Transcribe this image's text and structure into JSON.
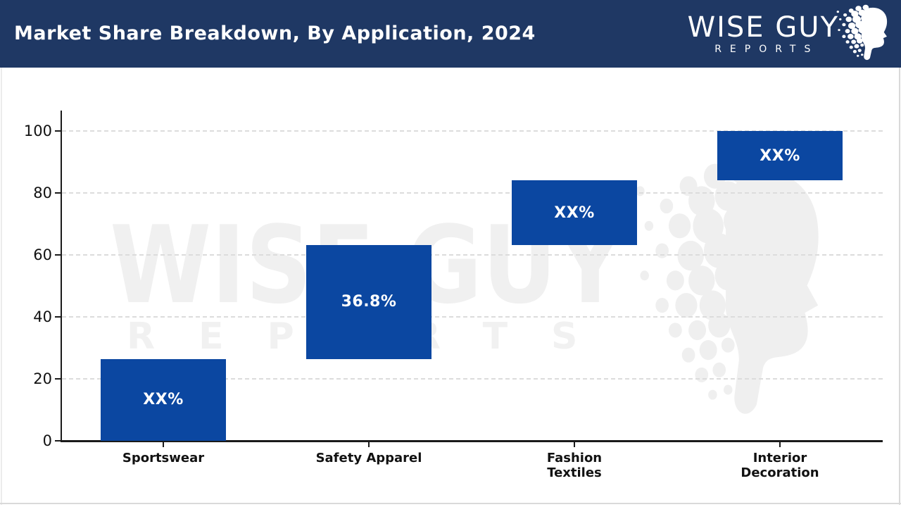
{
  "header": {
    "title": "Market Share Breakdown, By Application, 2024",
    "logo": {
      "line1": "WISE GUY",
      "line2": "REPORTS"
    }
  },
  "watermark": {
    "line1": "WISE GUY",
    "line2": "REPORTS"
  },
  "colors": {
    "header_bg": "#1f3864",
    "bar": "#0b47a1",
    "grid": "#dcdcdc",
    "axis": "#1a1a1a",
    "bar_label": "#ffffff"
  },
  "chart_data": {
    "type": "bar",
    "variant": "floating-waterfall-segments",
    "title": "Market Share Breakdown, By Application, 2024",
    "categories": [
      "Sportswear",
      "Safety Apparel",
      "Fashion Textiles",
      "Interior Decoration"
    ],
    "bars": [
      {
        "category": "Sportswear",
        "label": "XX%",
        "start": 0,
        "end": 26.4
      },
      {
        "category": "Safety Apparel",
        "label": "36.8%",
        "start": 26.4,
        "end": 63.2
      },
      {
        "category": "Fashion Textiles",
        "label": "XX%",
        "start": 63.2,
        "end": 84.0
      },
      {
        "category": "Interior Decoration",
        "label": "XX%",
        "start": 84.0,
        "end": 100.0
      }
    ],
    "segment_values": [
      26.4,
      36.8,
      20.8,
      16.0
    ],
    "ylim": [
      0,
      100
    ],
    "yticks": [
      0,
      20,
      40,
      60,
      80,
      100
    ],
    "xlabel": "",
    "ylabel": "",
    "grid": "horizontal-dashed",
    "legend": "none"
  }
}
